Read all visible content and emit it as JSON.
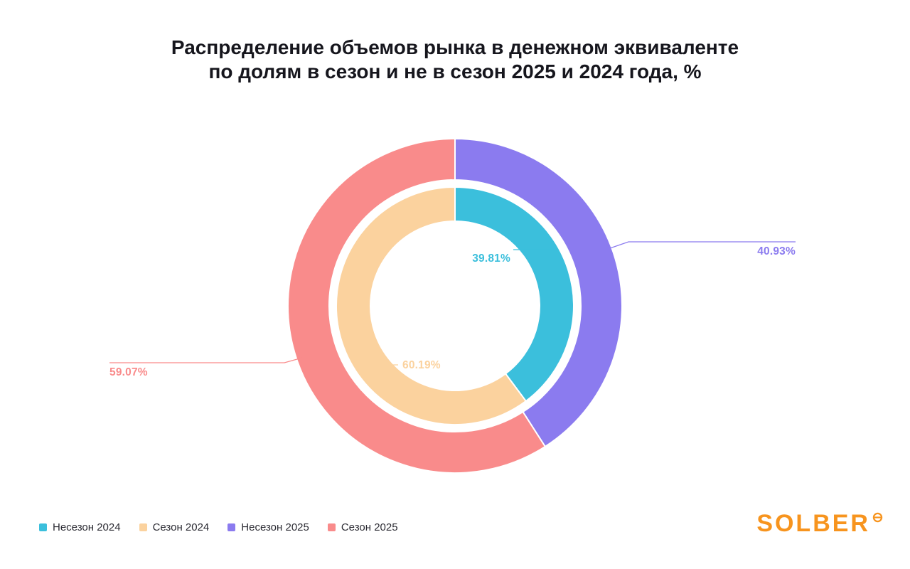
{
  "title": {
    "line1": "Распределение объемов рынка в денежном эквиваленте",
    "line2": "по долям в сезон и не в сезон 2025 и 2024 года, %"
  },
  "chart_data": {
    "type": "pie",
    "subtype": "nested-donut",
    "units": "%",
    "direction": "clockwise",
    "start_angle_deg": 0,
    "rings": [
      {
        "name": "2024",
        "position": "inner",
        "slices": [
          {
            "label": "Несезон 2024",
            "value": 39.81,
            "display": "39.81%",
            "color": "#3BBFDC"
          },
          {
            "label": "Сезон 2024",
            "value": 60.19,
            "display": "60.19%",
            "color": "#FBD29E"
          }
        ]
      },
      {
        "name": "2025",
        "position": "outer",
        "slices": [
          {
            "label": "Несезон 2025",
            "value": 40.93,
            "display": "40.93%",
            "color": "#8B7BEF"
          },
          {
            "label": "Сезон 2025",
            "value": 59.07,
            "display": "59.07%",
            "color": "#F98B8B"
          }
        ]
      }
    ]
  },
  "legend": {
    "items": [
      {
        "label": "Несезон 2024",
        "color": "#3BBFDC"
      },
      {
        "label": "Сезон 2024",
        "color": "#FBD29E"
      },
      {
        "label": "Несезон 2025",
        "color": "#8B7BEF"
      },
      {
        "label": "Сезон 2025",
        "color": "#F98B8B"
      }
    ]
  },
  "logo": {
    "text": "SOLBER",
    "color": "#F7941E"
  }
}
